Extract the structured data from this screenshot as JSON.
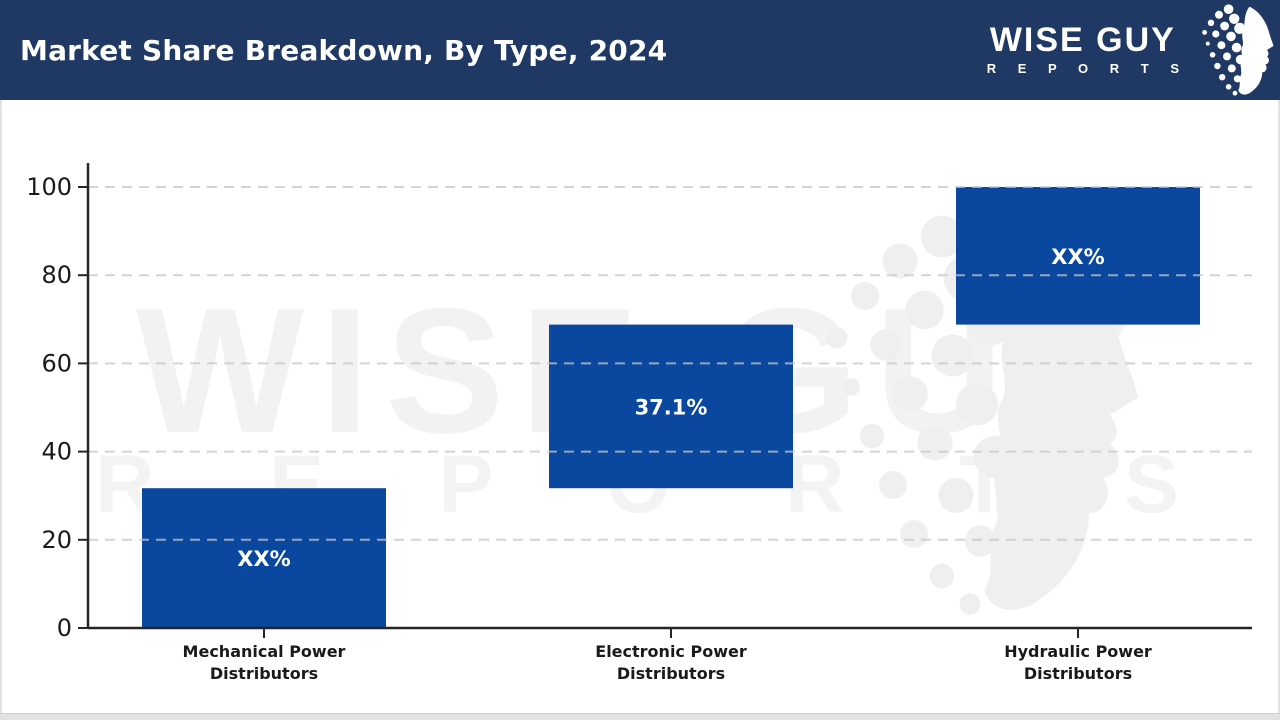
{
  "header": {
    "title": "Market Share Breakdown, By Type, 2024",
    "logo": {
      "line1": "WISE GUY",
      "line2": "R E P O R T S"
    }
  },
  "watermark": {
    "line1": "WISE GUY",
    "line2": "R E P O R T S"
  },
  "chart_data": {
    "type": "bar",
    "subtype": "waterfall-stacked-percentage",
    "title": "Market Share Breakdown, By Type, 2024",
    "categories": [
      [
        "Mechanical Power",
        "Distributors"
      ],
      [
        "Electronic Power",
        "Distributors"
      ],
      [
        "Hydraulic Power",
        "Distributors"
      ]
    ],
    "series": [
      {
        "name": "Market Share (%)",
        "segments": [
          {
            "start": 0,
            "end": 31.7,
            "value_label": "XX%"
          },
          {
            "start": 31.7,
            "end": 68.8,
            "value_label": "37.1%"
          },
          {
            "start": 68.8,
            "end": 100,
            "value_label": "XX%"
          }
        ]
      }
    ],
    "ylim": [
      0,
      100
    ],
    "yticks": [
      0,
      20,
      40,
      60,
      80,
      100
    ],
    "xlabel": "",
    "ylabel": "",
    "legend": "none",
    "grid": {
      "axis": "y",
      "style": "dashed",
      "drawn_over_bars": true
    },
    "colors": {
      "bar": "#0a479e",
      "bar_label": "#ffffff",
      "axis": "#262626",
      "gridline": "#c6c6c6",
      "header_bg": "#1f3864",
      "watermark": "#f2f2f2"
    }
  }
}
